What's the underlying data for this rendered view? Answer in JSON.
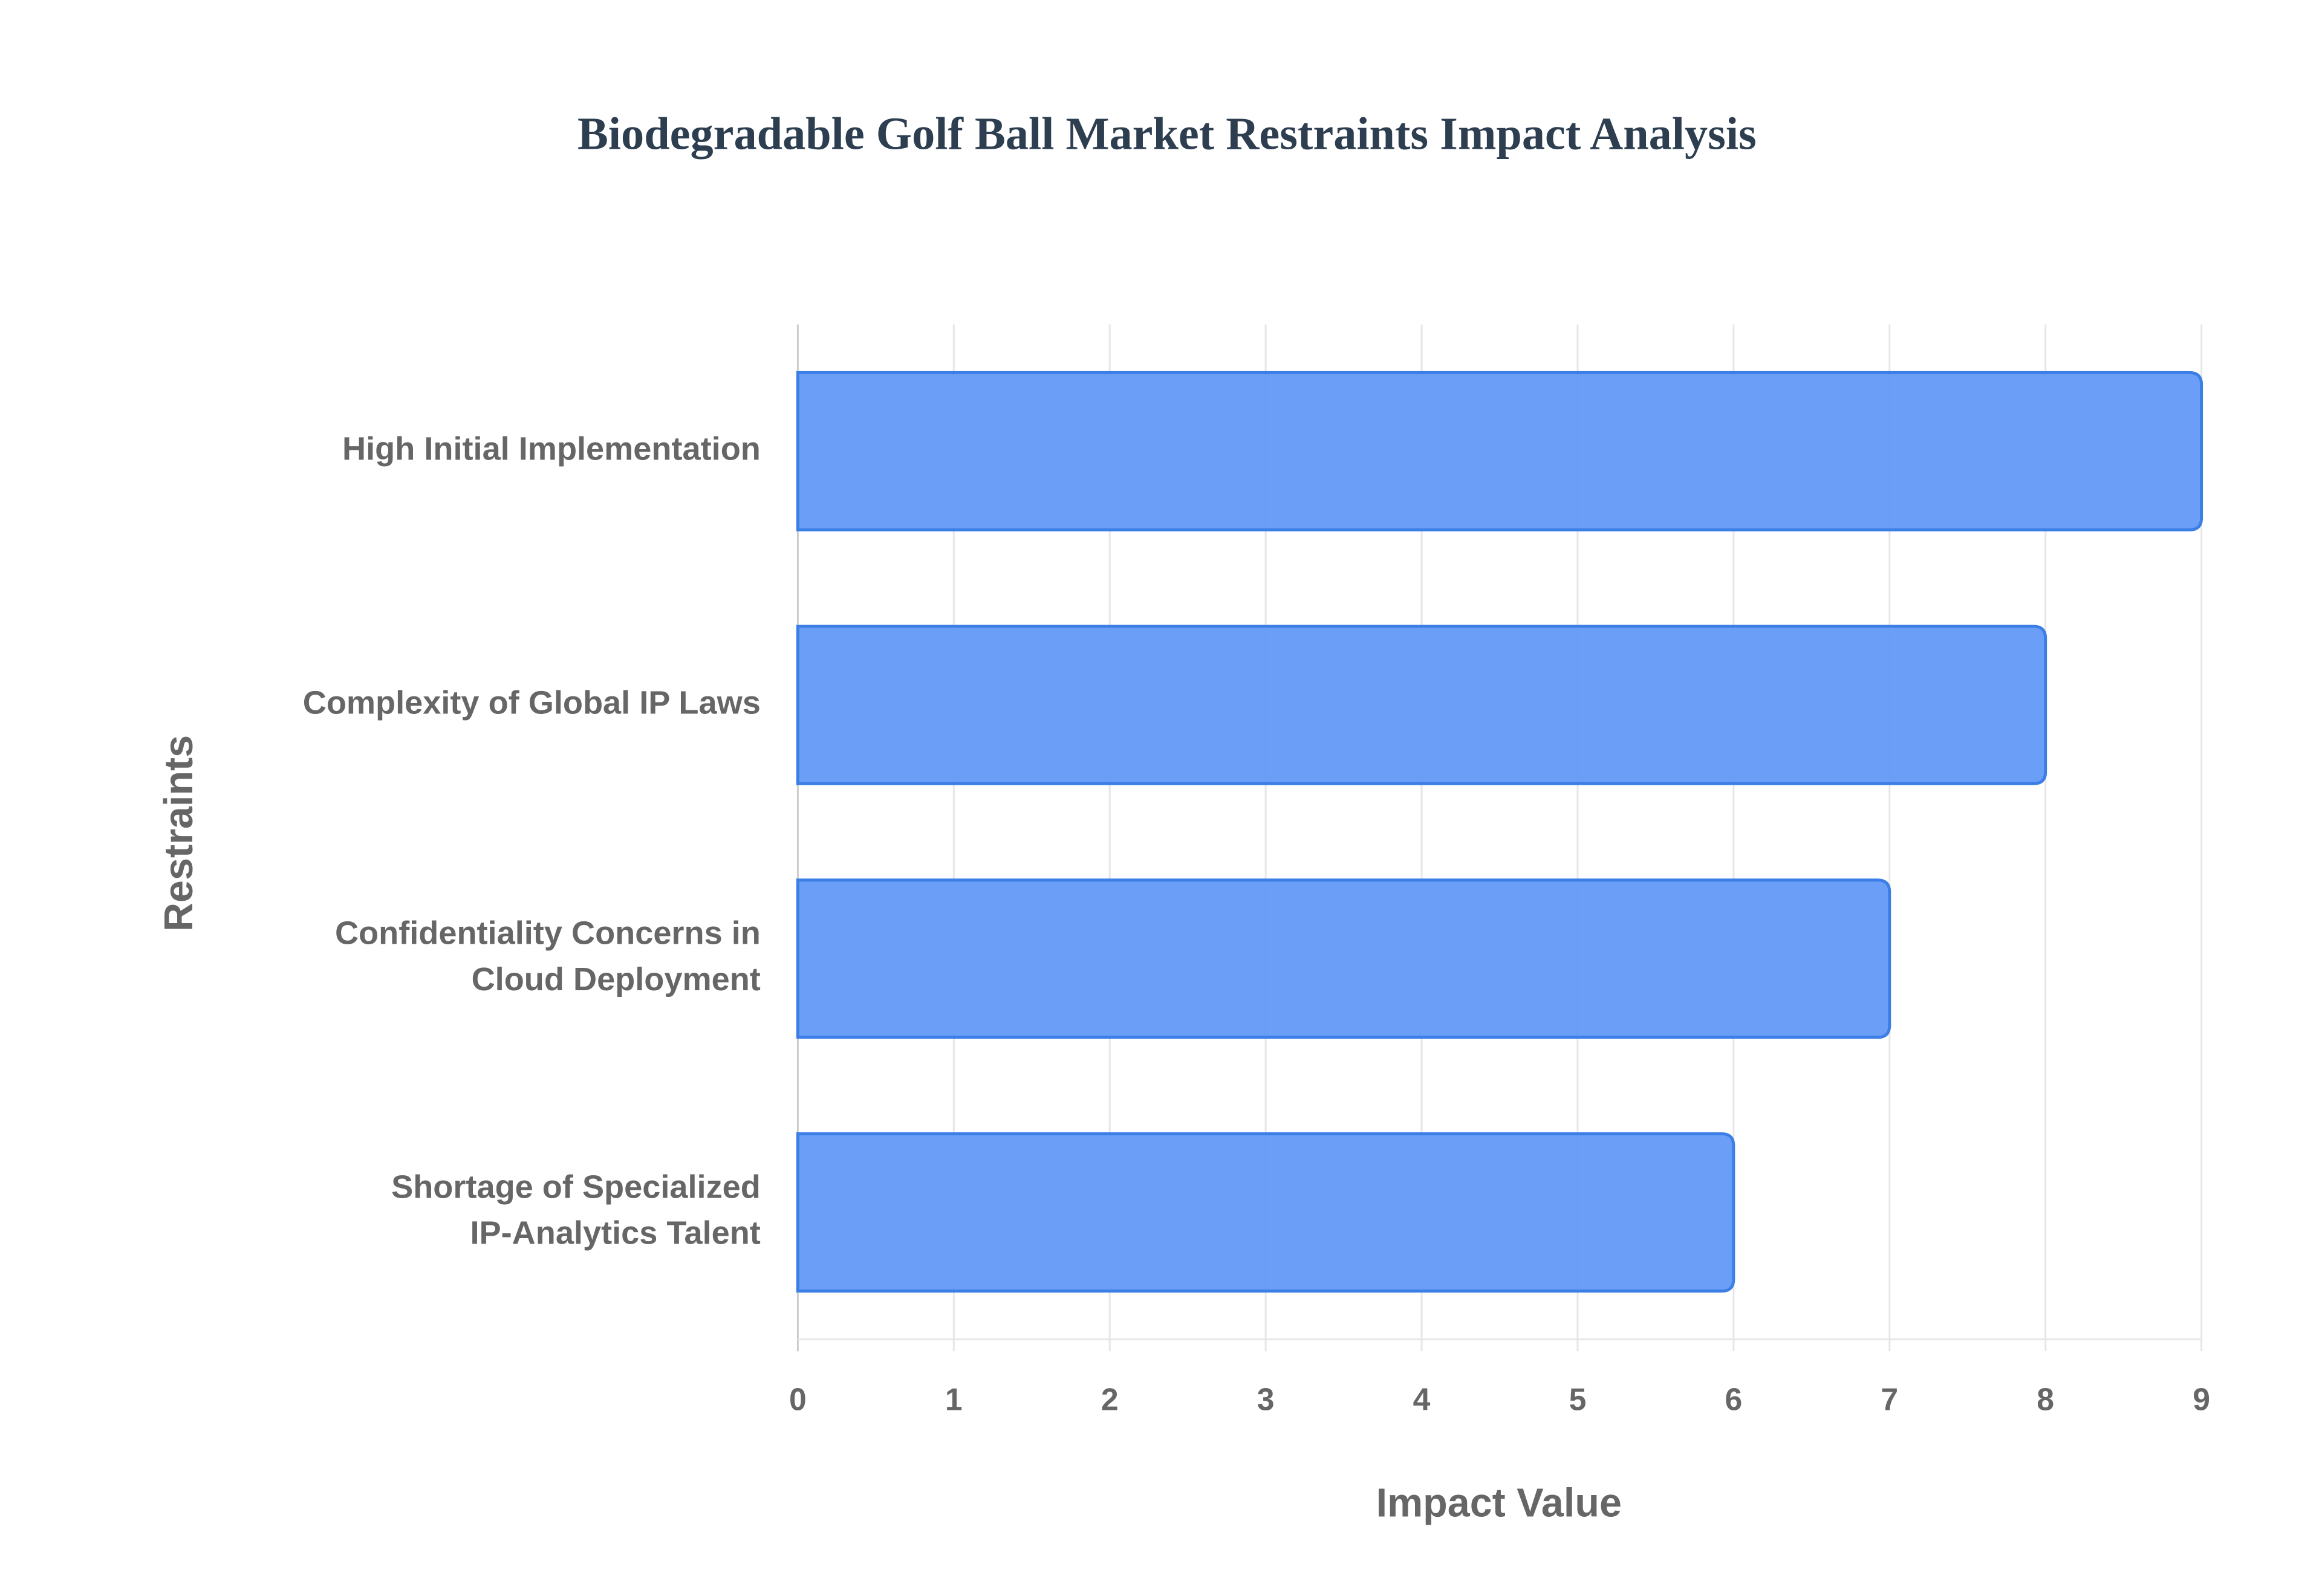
{
  "chart_data": {
    "type": "bar",
    "orientation": "horizontal",
    "title": "Biodegradable Golf Ball Market Restraints Impact Analysis",
    "x_label": "Impact Value",
    "y_label": "Restraints",
    "categories": [
      "High Initial Implementation",
      "Complexity of Global IP Laws",
      "Confidentiality Concerns in\nCloud Deployment",
      "Shortage of Specialized\nIP-Analytics Talent"
    ],
    "values": [
      9,
      8,
      7,
      6
    ],
    "color": "#6399f5",
    "xlim": [
      0,
      9
    ],
    "xticks": [
      0,
      1,
      2,
      3,
      4,
      5,
      6,
      7,
      8,
      9
    ],
    "grid": true
  }
}
